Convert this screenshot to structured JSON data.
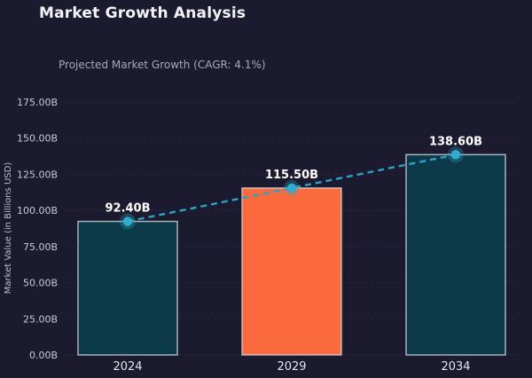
{
  "chart_data": {
    "type": "bar",
    "title": "Market Growth Analysis",
    "subtitle": "Projected Market Growth (CAGR: 4.1%)",
    "categories": [
      "2024",
      "2029",
      "2034"
    ],
    "values": [
      92.4,
      115.5,
      138.6
    ],
    "value_labels": [
      "92.40B",
      "115.50B",
      "138.60B"
    ],
    "bar_colors": [
      "#0d3a48",
      "#fb6a3d",
      "#0d3a48"
    ],
    "xlabel": "",
    "ylabel": "Market Value (in Billions USD)",
    "ylim": [
      0,
      175
    ],
    "ytick_step": 25,
    "ytick_labels": [
      "0.00B",
      "25.00B",
      "50.00B",
      "75.00B",
      "100.00B",
      "125.00B",
      "150.00B",
      "175.00B"
    ],
    "grid": true,
    "legend": "none",
    "trend_line": true,
    "colors": {
      "background": "#1c1a2e",
      "title": "#f2f2f7",
      "subtitle": "#a9a7b8",
      "axis_text": "#c9c8d6",
      "grid": "#302d48",
      "bar_teal": "#0d3a48",
      "bar_orange": "#fb6a3d",
      "bar_border": "#d6e0e8",
      "trend": "#2aa4c6",
      "value_label": "#ffffff"
    }
  }
}
